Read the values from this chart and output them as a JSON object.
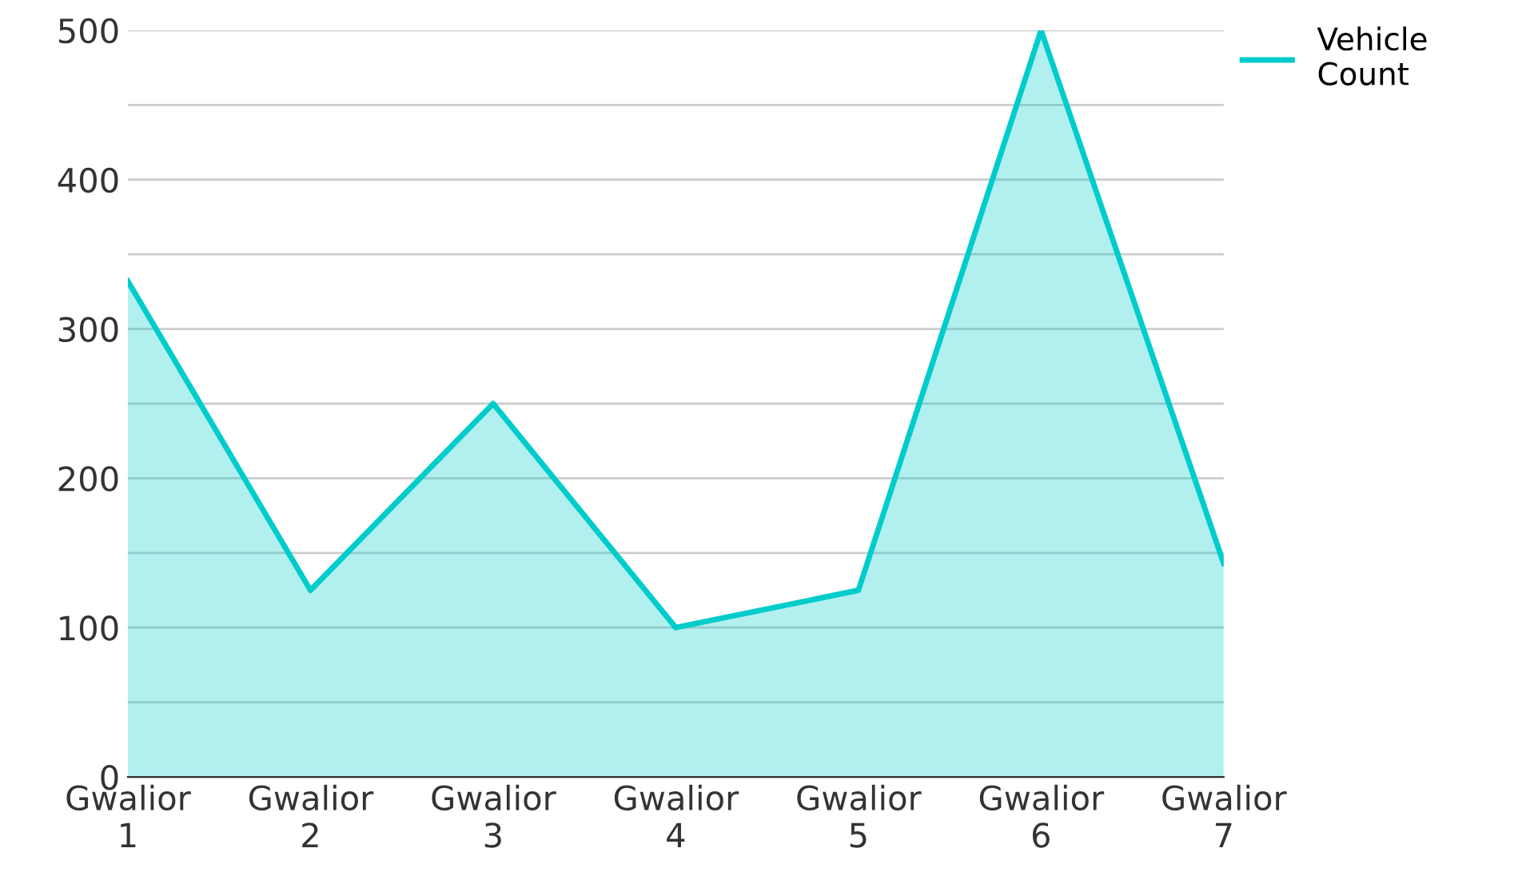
{
  "chart_data": {
    "type": "area",
    "categories": [
      "Gwalior 1",
      "Gwalior 2",
      "Gwalior 3",
      "Gwalior 4",
      "Gwalior 5",
      "Gwalior 6",
      "Gwalior 7"
    ],
    "series": [
      {
        "name": "Vehicle Count",
        "color": "#00cccc",
        "values": [
          332,
          125,
          250,
          100,
          125,
          500,
          143
        ]
      }
    ],
    "ylim": [
      0,
      500
    ],
    "yticks": [
      0,
      {
        "value": 50,
        "label": null
      },
      100,
      {
        "value": 150,
        "label": null
      },
      200,
      {
        "value": 250,
        "label": null
      },
      300,
      {
        "value": 350,
        "label": null
      },
      400,
      {
        "value": 450,
        "label": null
      },
      500
    ],
    "grid": "y",
    "legend": "top right",
    "marker": "none",
    "line_style": "solid"
  }
}
